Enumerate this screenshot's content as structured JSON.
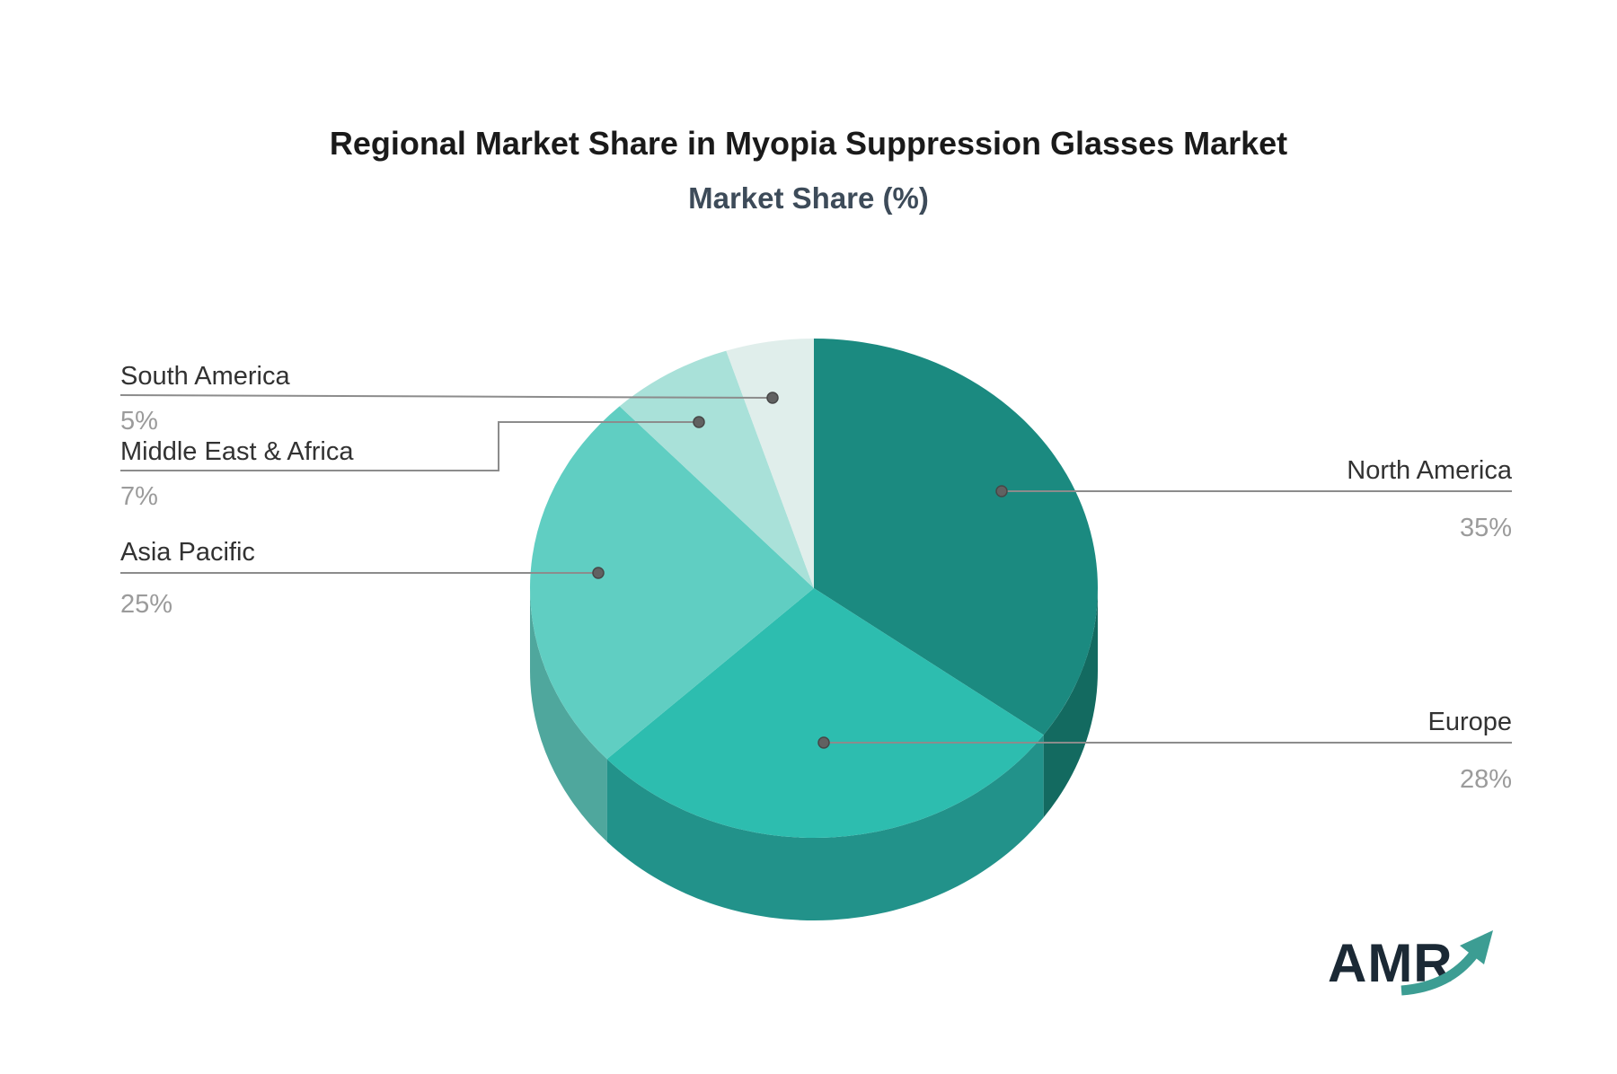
{
  "header": {
    "title": "Regional Market Share in Myopia Suppression Glasses Market",
    "subtitle": "Market Share (%)"
  },
  "chart_data": {
    "type": "pie",
    "style": "3d",
    "title": "Regional Market Share in Myopia Suppression Glasses Market",
    "subtitle": "Market Share (%)",
    "unit": "%",
    "start_angle_deg": 0,
    "direction": "clockwise",
    "legend_position": "callouts",
    "labels": [
      "North America",
      "Europe",
      "Asia Pacific",
      "Middle East & Africa",
      "South America"
    ],
    "values": [
      35,
      28,
      25,
      7,
      5
    ],
    "colors": [
      "#1B8A80",
      "#2DBDAF",
      "#60CEC2",
      "#A9E1D9",
      "#E0EEEB"
    ],
    "side_colors": [
      "#136A60",
      "#22928A",
      "#4FA79D",
      null,
      null
    ]
  },
  "callouts": {
    "north_america": {
      "label": "North America",
      "value": "35%"
    },
    "europe": {
      "label": "Europe",
      "value": "28%"
    },
    "asia_pacific": {
      "label": "Asia Pacific",
      "value": "25%"
    },
    "middle_east_africa": {
      "label": "Middle East & Africa",
      "value": "7%"
    },
    "south_america": {
      "label": "South America",
      "value": "5%"
    }
  },
  "logo": {
    "text": "AMR"
  },
  "colors": {
    "background": "#FFFFFF",
    "title": "#1A1A1A",
    "subtitle": "#3D4B59",
    "label": "#323232",
    "percent": "#9B9B9B",
    "leader_line": "#8C8C8C",
    "dot": "#616161",
    "logo_text": "#1B2935",
    "logo_arrow": "#3C9D93"
  }
}
